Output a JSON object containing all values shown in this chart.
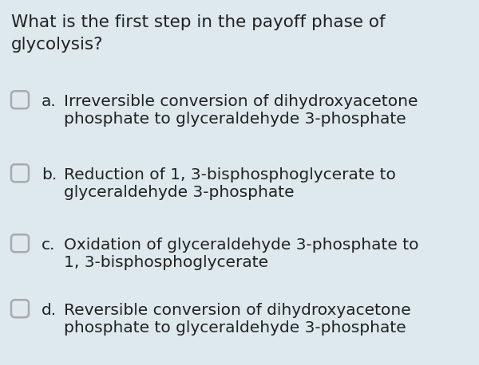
{
  "background_color": "#dde9ed",
  "question_line1": "What is the first step in the payoff phase of",
  "question_line2": "glycolysis?",
  "options": [
    {
      "label": "a.",
      "lines": [
        "Irreversible conversion of dihydroxyacetone",
        "phosphate to glyceraldehyde 3-phosphate"
      ]
    },
    {
      "label": "b.",
      "lines": [
        "Reduction of 1, 3-bisphosphoglycerate to",
        "glyceraldehyde 3-phosphate"
      ]
    },
    {
      "label": "c.",
      "lines": [
        "Oxidation of glyceraldehyde 3-phosphate to",
        "1, 3-bisphosphoglycerate"
      ]
    },
    {
      "label": "d.",
      "lines": [
        "Reversible conversion of dihydroxyacetone",
        "phosphate to glyceraldehyde 3-phosphate"
      ]
    }
  ],
  "question_fontsize": 15.5,
  "option_fontsize": 14.5,
  "text_color": "#222222",
  "circle_color": "#aaaaaa",
  "fig_width": 6.0,
  "fig_height": 4.58,
  "dpi": 100
}
